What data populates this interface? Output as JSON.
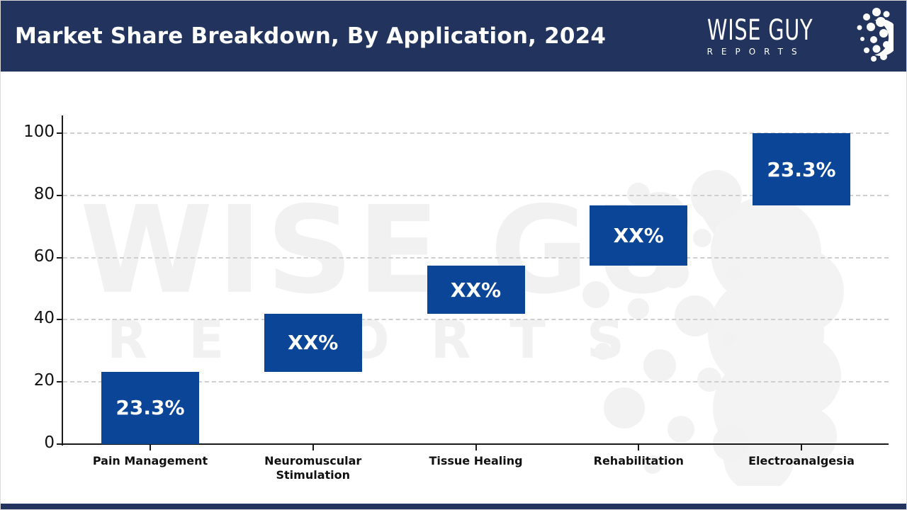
{
  "header": {
    "title": "Market Share Breakdown, By Application, 2024",
    "logo": {
      "name": "WISE GUY",
      "tagline": "REPORTS"
    }
  },
  "watermark": {
    "big_text": "WISE GUY",
    "small_text": "REPORTS"
  },
  "chart_data": {
    "type": "bar",
    "variant": "waterfall",
    "title": "Market Share Breakdown, By Application, 2024",
    "categories": [
      "Pain Management",
      "Neuromuscular Stimulation",
      "Tissue Healing",
      "Rehabilitation",
      "Electroanalgesia"
    ],
    "segments": [
      {
        "category": "Pain Management",
        "start": 0,
        "end": 23.3,
        "label": "23.3%"
      },
      {
        "category": "Neuromuscular Stimulation",
        "start": 23.3,
        "end": 41.9,
        "label": "XX%"
      },
      {
        "category": "Tissue Healing",
        "start": 41.9,
        "end": 57.3,
        "label": "XX%"
      },
      {
        "category": "Rehabilitation",
        "start": 57.3,
        "end": 76.7,
        "label": "XX%"
      },
      {
        "category": "Electroanalgesia",
        "start": 76.7,
        "end": 100,
        "label": "23.3%"
      }
    ],
    "xlabel": "",
    "ylabel": "",
    "ylim": [
      0,
      100
    ],
    "yticks": [
      0,
      20,
      40,
      60,
      80,
      100
    ],
    "grid": "horizontal-dashed",
    "legend": "none",
    "colors": {
      "bar": "#0a4598",
      "bar_label": "#ffffff",
      "grid": "#cfcfcf",
      "axis": "#1a1a1a",
      "tick_label": "#111111",
      "header_bg": "#22345e",
      "watermark": "#f1f1f1"
    }
  }
}
